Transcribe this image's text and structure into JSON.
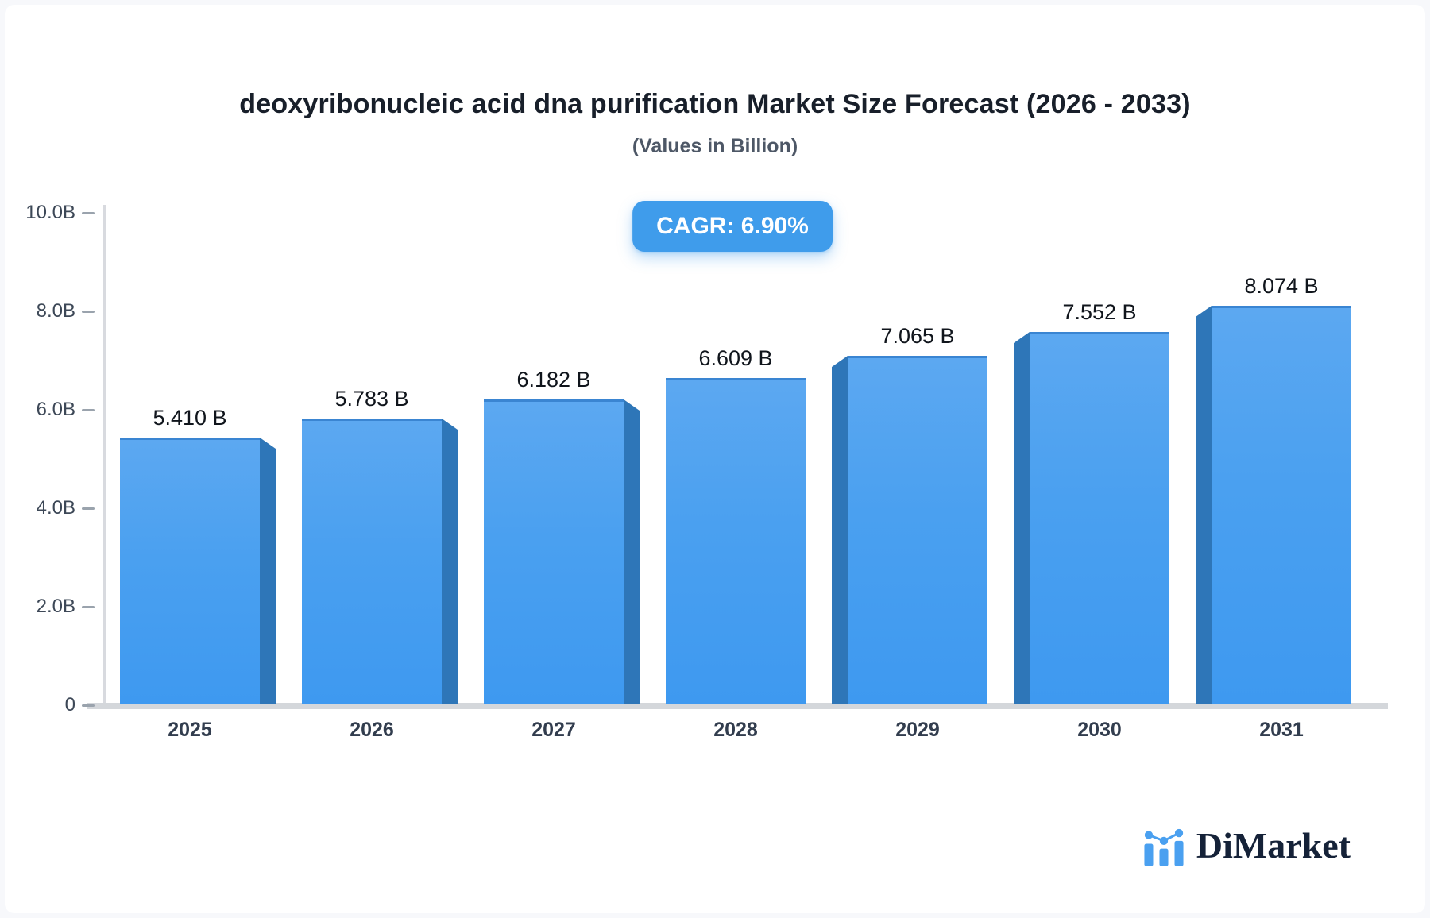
{
  "title": "deoxyribonucleic acid dna purification Market Size Forecast (2026 - 2033)",
  "subtitle": "(Values in Billion)",
  "badge": {
    "label": "CAGR: 6.90%"
  },
  "chart_data": {
    "type": "bar",
    "title": "deoxyribonucleic acid dna purification Market Size Forecast (2026 - 2033)",
    "subtitle": "(Values in Billion)",
    "categories": [
      "2025",
      "2026",
      "2027",
      "2028",
      "2029",
      "2030",
      "2031"
    ],
    "values": [
      5.41,
      5.783,
      6.182,
      6.609,
      7.065,
      7.552,
      8.074
    ],
    "value_labels": [
      "5.410 B",
      "5.783 B",
      "6.182 B",
      "6.609 B",
      "7.065 B",
      "7.552 B",
      "8.074 B"
    ],
    "xlabel": "",
    "ylabel": "",
    "ylim": [
      0,
      10
    ],
    "yticks": [
      {
        "label": "10.0B",
        "value": 10
      },
      {
        "label": "8.0B",
        "value": 8
      },
      {
        "label": "6.0B",
        "value": 6
      },
      {
        "label": "4.0B",
        "value": 4
      },
      {
        "label": "2.0B",
        "value": 2
      },
      {
        "label": "0",
        "value": 0
      }
    ],
    "grid": false,
    "legend": false,
    "cagr": "6.90%"
  },
  "colors": {
    "bar_face_top": "#5ca8f1",
    "bar_face_bottom": "#3e99f0",
    "bar_side": "#2e76b8",
    "badge_bg": "#3f9ceb",
    "badge_text": "#ffffff",
    "axis_line": "#d8dadf",
    "baseline": "#d4d7db",
    "tick_text": "#3d4857",
    "title_text": "#181f2a",
    "subtitle_text": "#4d5766",
    "logo_blue": "#4aa0f0",
    "logo_text": "#152238"
  },
  "logo": {
    "text": "DiMarket",
    "icon": "bar-chart-logo-icon"
  }
}
